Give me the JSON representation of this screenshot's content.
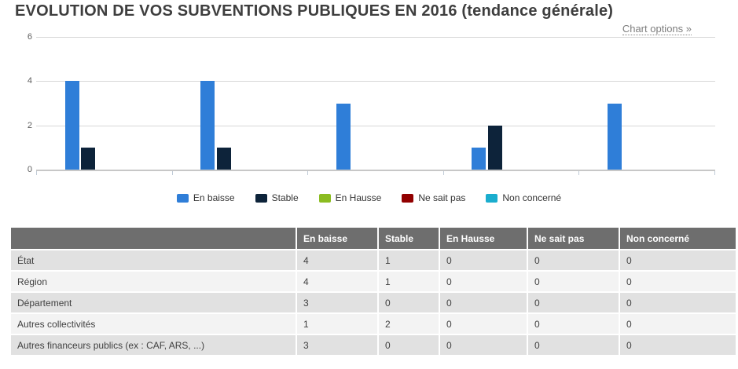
{
  "page": {
    "title": "EVOLUTION DE VOS SUBVENTIONS PUBLIQUES EN 2016 (tendance générale)",
    "chart_options_label": "Chart options »"
  },
  "colors": {
    "en_baisse": "#2f7ed8",
    "stable": "#0d233a",
    "en_hausse": "#8bbc21",
    "ne_sait_pas": "#910000",
    "non_concerne": "#1aadce",
    "header_bg": "#6e6e6e",
    "row_odd_bg": "#e1e1e1",
    "row_even_bg": "#f3f3f3"
  },
  "chart_data": {
    "type": "bar",
    "title": "",
    "xlabel": "",
    "ylabel": "",
    "categories": [
      "État",
      "Région",
      "Département",
      "Autres collectivités",
      "Autres financeurs publics (ex : CAF, ARS, ...)"
    ],
    "series": [
      {
        "name": "En baisse",
        "color": "#2f7ed8",
        "values": [
          4,
          4,
          3,
          1,
          3
        ]
      },
      {
        "name": "Stable",
        "color": "#0d233a",
        "values": [
          1,
          1,
          0,
          2,
          0
        ]
      },
      {
        "name": "En Hausse",
        "color": "#8bbc21",
        "values": [
          0,
          0,
          0,
          0,
          0
        ]
      },
      {
        "name": "Ne sait pas",
        "color": "#910000",
        "values": [
          0,
          0,
          0,
          0,
          0
        ]
      },
      {
        "name": "Non concerné",
        "color": "#1aadce",
        "values": [
          0,
          0,
          0,
          0,
          0
        ]
      }
    ],
    "ylim": [
      0,
      6
    ],
    "yticks": [
      0,
      2,
      4,
      6
    ],
    "grid": true,
    "legend_position": "bottom"
  },
  "table": {
    "columns": [
      "",
      "En baisse",
      "Stable",
      "En Hausse",
      "Ne sait pas",
      "Non concerné"
    ],
    "rows": [
      {
        "label": "État",
        "values": [
          "4",
          "1",
          "0",
          "0",
          "0"
        ]
      },
      {
        "label": "Région",
        "values": [
          "4",
          "1",
          "0",
          "0",
          "0"
        ]
      },
      {
        "label": "Département",
        "values": [
          "3",
          "0",
          "0",
          "0",
          "0"
        ]
      },
      {
        "label": "Autres collectivités",
        "values": [
          "1",
          "2",
          "0",
          "0",
          "0"
        ]
      },
      {
        "label": "Autres financeurs publics (ex : CAF, ARS, ...)",
        "values": [
          "3",
          "0",
          "0",
          "0",
          "0"
        ]
      }
    ]
  }
}
